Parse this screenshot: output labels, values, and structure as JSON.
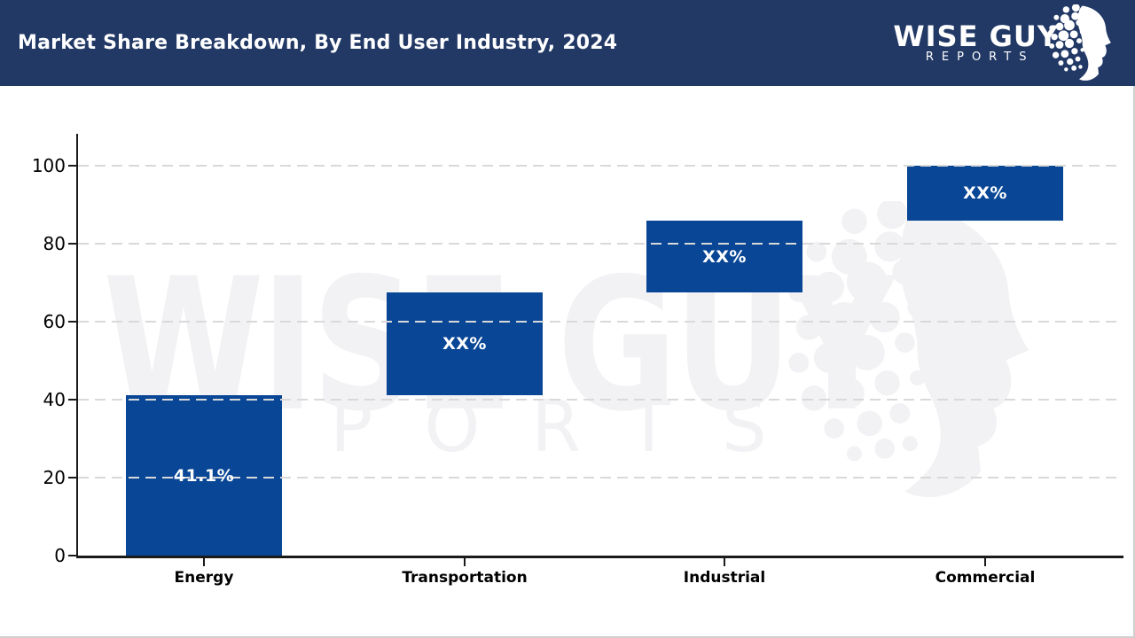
{
  "header": {
    "title": "Market Share Breakdown, By End User Industry, 2024",
    "logo": {
      "wordmark": "WISE GUY",
      "subtitle": "REPORTS"
    }
  },
  "watermark": {
    "line1": "WISE GUY",
    "line2": "REPORTS"
  },
  "chart_data": {
    "type": "bar",
    "subtype": "waterfall",
    "title": "Market Share Breakdown, By End User Industry, 2024",
    "categories": [
      "Energy",
      "Transportation",
      "Industrial",
      "Commercial"
    ],
    "bars": [
      {
        "category": "Energy",
        "start": 0,
        "end": 41.1,
        "value_label": "41.1%",
        "approx_segment": 41.1
      },
      {
        "category": "Transportation",
        "start": 41.1,
        "end": 67.5,
        "value_label": "XX%",
        "approx_segment": 26.4
      },
      {
        "category": "Industrial",
        "start": 67.5,
        "end": 85.9,
        "value_label": "XX%",
        "approx_segment": 18.4
      },
      {
        "category": "Commercial",
        "start": 85.9,
        "end": 100,
        "value_label": "XX%",
        "approx_segment": 14.1
      }
    ],
    "yticks": [
      0,
      20,
      40,
      60,
      80,
      100
    ],
    "ylim": [
      0,
      108
    ],
    "xlabel": "",
    "ylabel": "",
    "grid": "horizontal-dashed-over-bars",
    "legend": "none",
    "bar_color": "#094696",
    "bar_label_color": "#ffffff"
  },
  "colors": {
    "header_bg": "#223966",
    "header_text": "#ffffff",
    "gridline": "#d9d9d9",
    "axis": "#1a1a1a",
    "watermark": "#f2f2f4"
  }
}
